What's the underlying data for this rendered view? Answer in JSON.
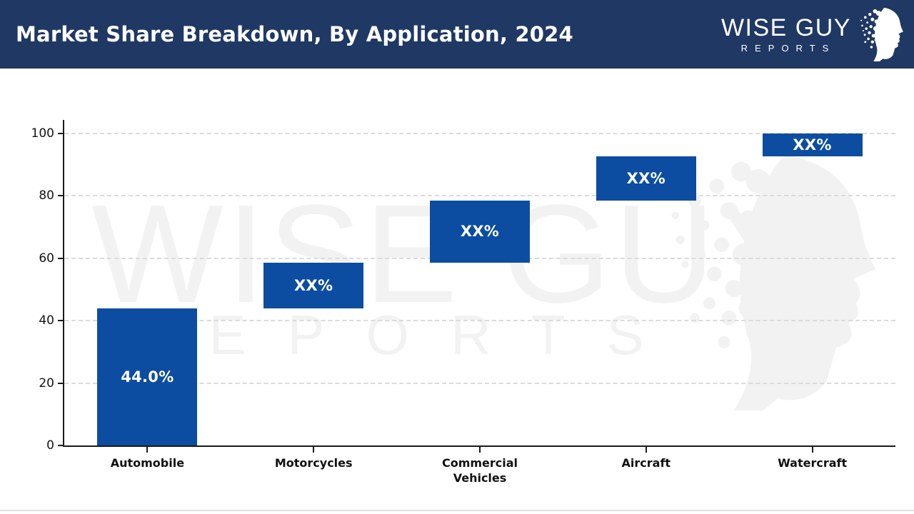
{
  "header": {
    "title": "Market Share Breakdown, By Application, 2024",
    "logo": {
      "wordmark": "WISE GUY",
      "subtext": "REPORTS",
      "icon": "dotted-face-profile-icon"
    }
  },
  "watermark": {
    "line1": "WISE GUY",
    "line2": "REPORTS",
    "icon": "dotted-face-profile-icon"
  },
  "colors": {
    "header_bg": "#1F3864",
    "bar": "#0C4DA1",
    "bar_label": "#FFFFFF",
    "grid": "#DBDBDB",
    "axis": "#1A1A1A",
    "tick_text": "#151515",
    "watermark": "#F2F2F2"
  },
  "chart_data": {
    "type": "bar",
    "subtype": "waterfall",
    "title": "Market Share Breakdown, By Application, 2024",
    "units": "percent",
    "categories": [
      "Automobile",
      "Motorcycles",
      "Commercial Vehicles",
      "Aircraft",
      "Watercraft"
    ],
    "segments": [
      {
        "category": "Automobile",
        "start": 0,
        "end": 44,
        "label": "44.0%"
      },
      {
        "category": "Motorcycles",
        "start": 44,
        "end": 58.5,
        "label": "XX%"
      },
      {
        "category": "Commercial Vehicles",
        "start": 58.5,
        "end": 78.5,
        "label": "XX%"
      },
      {
        "category": "Aircraft",
        "start": 78.5,
        "end": 92.5,
        "label": "XX%"
      },
      {
        "category": "Watercraft",
        "start": 92.5,
        "end": 100,
        "label": "XX%"
      }
    ],
    "yticks": [
      0,
      20,
      40,
      60,
      80,
      100
    ],
    "ylim": [
      0,
      105
    ],
    "xlabel": "",
    "ylabel": "",
    "grid": "dashed-horizontal",
    "legend": "none"
  }
}
